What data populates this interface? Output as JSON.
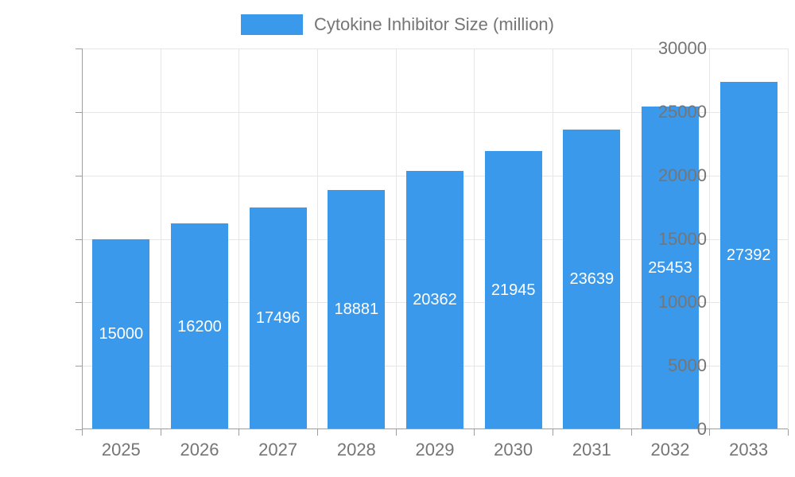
{
  "legend": {
    "label": "Cytokine Inhibitor Size (million)"
  },
  "chart_data": {
    "type": "bar",
    "title": "",
    "xlabel": "",
    "ylabel": "",
    "categories": [
      "2025",
      "2026",
      "2027",
      "2028",
      "2029",
      "2030",
      "2031",
      "2032",
      "2033"
    ],
    "series": [
      {
        "name": "Cytokine Inhibitor Size (million)",
        "values": [
          15000,
          16200,
          17496,
          18881,
          20362,
          21945,
          23639,
          25453,
          27392
        ]
      }
    ],
    "data_labels": [
      "15000",
      "16200",
      "17496",
      "18881",
      "20362",
      "21945",
      "23639",
      "25453",
      "27392"
    ],
    "ylim": [
      0,
      30000
    ],
    "y_ticks": [
      0,
      5000,
      10000,
      15000,
      20000,
      25000,
      30000
    ],
    "grid": "on",
    "legend_position": "top-center",
    "colors": {
      "bar": "#3B99EC",
      "bar_value_text": "#FFFFFF",
      "axis_text": "#757575",
      "grid_line": "#E6E6E6",
      "axis_line": "#9E9E9E",
      "background": "#FFFFFF"
    }
  }
}
